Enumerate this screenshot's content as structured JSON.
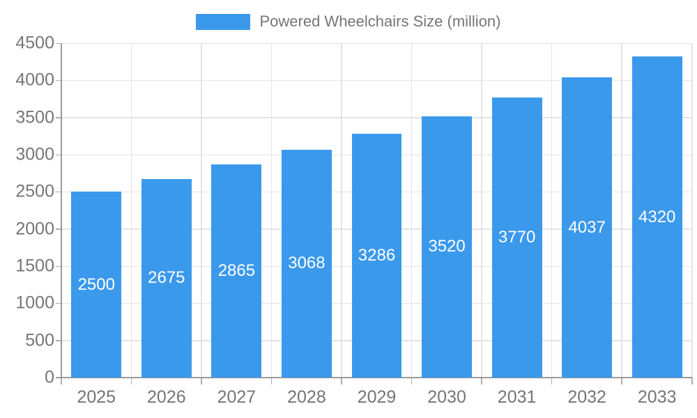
{
  "chart_data": {
    "type": "bar",
    "title": "",
    "legend": {
      "label": "Powered Wheelchairs Size (million)",
      "position": "top"
    },
    "categories": [
      "2025",
      "2026",
      "2027",
      "2028",
      "2029",
      "2030",
      "2031",
      "2032",
      "2033"
    ],
    "values": [
      2500,
      2675,
      2865,
      3068,
      3286,
      3520,
      3770,
      4037,
      4320
    ],
    "xlabel": "",
    "ylabel": "",
    "ylim": [
      0,
      4500
    ],
    "yticks": [
      0,
      500,
      1000,
      1500,
      2000,
      2500,
      3000,
      3500,
      4000,
      4500
    ],
    "grid": "both",
    "bar_labels_position": "inside-center",
    "colors": {
      "bar": "#3B99EC",
      "grid": "#E3E3E3",
      "axis": "#9A9A9A",
      "tick": "#ADADAD",
      "text": "#757575",
      "bar_label": "#FFFFFF",
      "background": "#FFFFFF"
    }
  }
}
